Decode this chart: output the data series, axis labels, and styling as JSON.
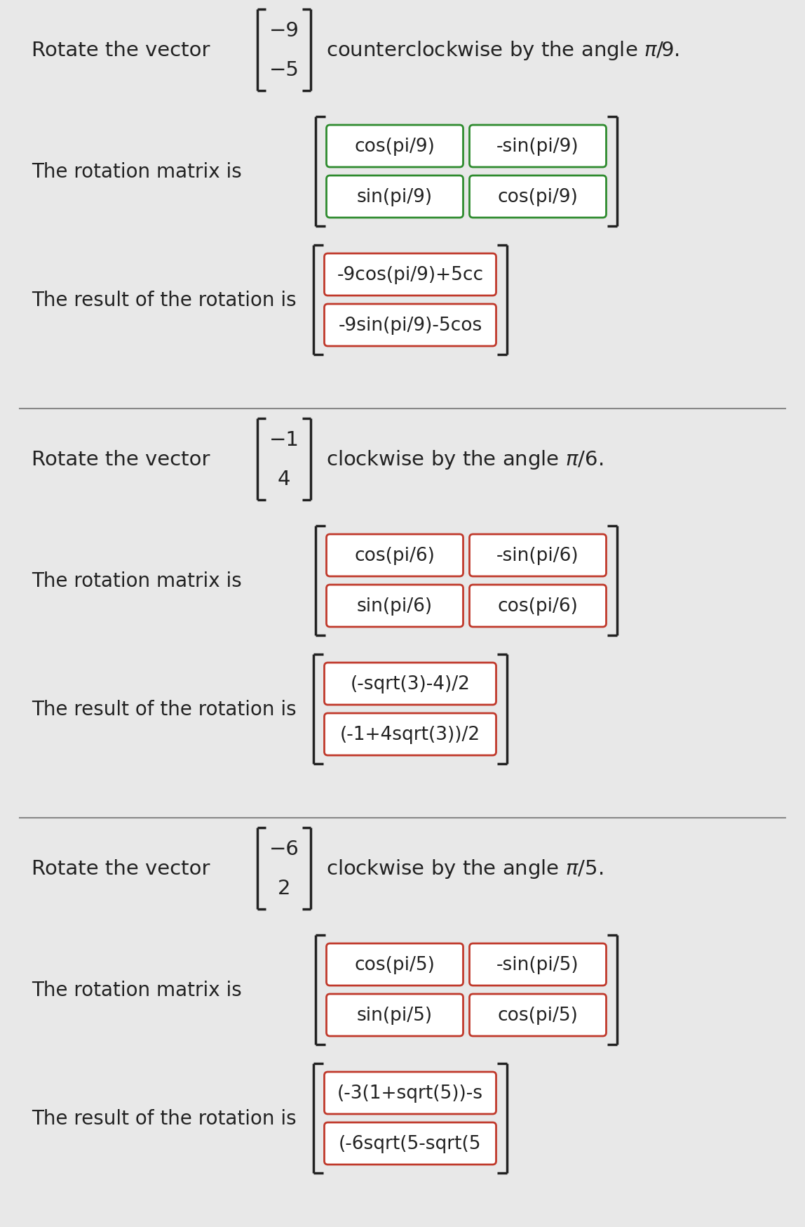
{
  "bg_color": "#e8e8e8",
  "problems": [
    {
      "vector": [
        "−9",
        "−5"
      ],
      "direction": "counterclockwise",
      "angle_num": "9",
      "matrix_box_color": "#2e8b2e",
      "result_box_color": "#c0392b",
      "matrix": [
        [
          "cos(pi/9)",
          "-sin(pi/9)"
        ],
        [
          "sin(pi/9)",
          "cos(pi/9)"
        ]
      ],
      "result": [
        "-9cos(pi/9)+5cc",
        "-9sin(pi/9)-5cos"
      ]
    },
    {
      "vector": [
        "−1",
        "4"
      ],
      "direction": "clockwise",
      "angle_num": "6",
      "matrix_box_color": "#c0392b",
      "result_box_color": "#c0392b",
      "matrix": [
        [
          "cos(pi/6)",
          "-sin(pi/6)"
        ],
        [
          "sin(pi/6)",
          "cos(pi/6)"
        ]
      ],
      "result": [
        "(-sqrt(3)-4)/2",
        "(-1+4sqrt(3))/2"
      ]
    },
    {
      "vector": [
        "−6",
        "2"
      ],
      "direction": "clockwise",
      "angle_num": "5",
      "matrix_box_color": "#c0392b",
      "result_box_color": "#c0392b",
      "matrix": [
        [
          "cos(pi/5)",
          "-sin(pi/5)"
        ],
        [
          "sin(pi/5)",
          "cos(pi/5)"
        ]
      ],
      "result": [
        "(-3(1+sqrt(5))-s",
        "(-6sqrt(5-sqrt(5"
      ]
    }
  ],
  "divider_color": "#888888",
  "text_color": "#222222",
  "bracket_color": "#222222"
}
